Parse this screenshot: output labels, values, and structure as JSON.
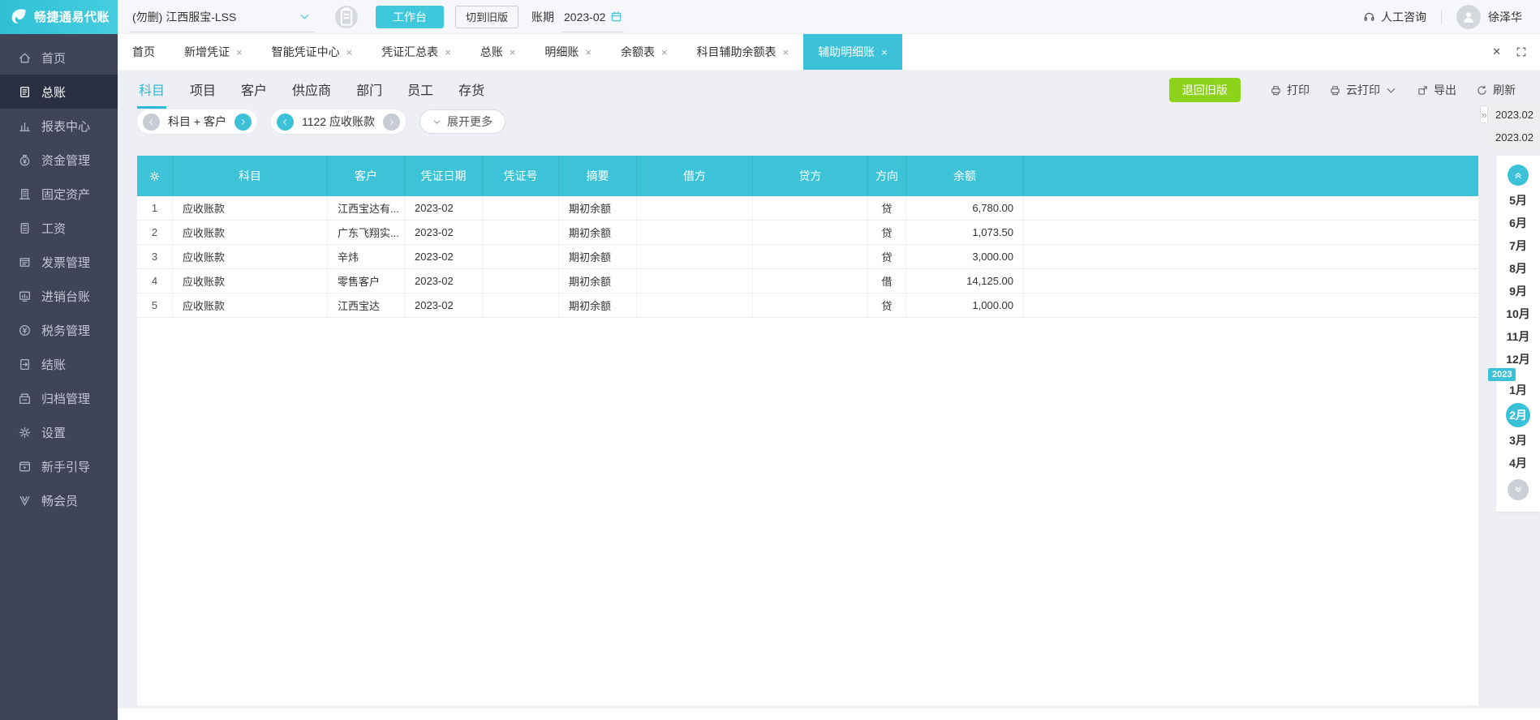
{
  "header": {
    "brand": "畅捷通易代账",
    "company": "(勿删) 江西服宝-LSS",
    "workbench": "工作台",
    "switch_old": "切到旧版",
    "period_label": "账期",
    "period_value": "2023-02",
    "consult": "人工咨询",
    "username": "徐泽华"
  },
  "sidebar": {
    "items": [
      {
        "key": "home",
        "icon": "home-icon",
        "label": "首页",
        "active": false
      },
      {
        "key": "general-ledger",
        "icon": "ledger-icon",
        "label": "总账",
        "active": true
      },
      {
        "key": "report-center",
        "icon": "report-center-icon",
        "label": "报表中心",
        "active": false
      },
      {
        "key": "funds",
        "icon": "funds-icon",
        "label": "资金管理",
        "active": false
      },
      {
        "key": "fixed-assets",
        "icon": "fixed-assets-icon",
        "label": "固定资产",
        "active": false
      },
      {
        "key": "payroll",
        "icon": "payroll-icon",
        "label": "工资",
        "active": false
      },
      {
        "key": "invoice",
        "icon": "invoice-icon",
        "label": "发票管理",
        "active": false
      },
      {
        "key": "purchase-sales-ledger",
        "icon": "purchase-sales-icon",
        "label": "进销台账",
        "active": false
      },
      {
        "key": "tax",
        "icon": "tax-icon",
        "label": "税务管理",
        "active": false
      },
      {
        "key": "closing",
        "icon": "closing-icon",
        "label": "结账",
        "active": false
      },
      {
        "key": "archive",
        "icon": "archive-icon",
        "label": "归档管理",
        "active": false
      },
      {
        "key": "settings",
        "icon": "settings-icon",
        "label": "设置",
        "active": false
      },
      {
        "key": "beginner-guide",
        "icon": "guide-icon",
        "label": "新手引导",
        "active": false
      },
      {
        "key": "member",
        "icon": "member-icon",
        "label": "畅会员",
        "active": false
      }
    ]
  },
  "tabs": [
    {
      "key": "home",
      "label": "首页",
      "closable": false,
      "active": false
    },
    {
      "key": "new-voucher",
      "label": "新增凭证",
      "closable": true,
      "active": false
    },
    {
      "key": "smart-voucher-center",
      "label": "智能凭证中心",
      "closable": true,
      "active": false
    },
    {
      "key": "voucher-summary",
      "label": "凭证汇总表",
      "closable": true,
      "active": false
    },
    {
      "key": "general-ledger",
      "label": "总账",
      "closable": true,
      "active": false
    },
    {
      "key": "detail-ledger",
      "label": "明细账",
      "closable": true,
      "active": false
    },
    {
      "key": "balance-table",
      "label": "余额表",
      "closable": true,
      "active": false
    },
    {
      "key": "subject-aux-balance",
      "label": "科目辅助余额表",
      "closable": true,
      "active": false
    },
    {
      "key": "aux-detail-ledger",
      "label": "辅助明细账",
      "closable": true,
      "active": true
    }
  ],
  "subtabs": [
    {
      "key": "subject",
      "label": "科目",
      "active": true
    },
    {
      "key": "project",
      "label": "项目",
      "active": false
    },
    {
      "key": "customer",
      "label": "客户",
      "active": false
    },
    {
      "key": "supplier",
      "label": "供应商",
      "active": false
    },
    {
      "key": "department",
      "label": "部门",
      "active": false
    },
    {
      "key": "employee",
      "label": "员工",
      "active": false
    },
    {
      "key": "inventory",
      "label": "存货",
      "active": false
    }
  ],
  "toolbar": {
    "back_old": "退回旧版",
    "print": "打印",
    "cloud_print": "云打印",
    "export": "导出",
    "refresh": "刷新"
  },
  "filters": {
    "dimension": "科目 + 客户",
    "account": "1122 应收账款",
    "expand_more": "展开更多"
  },
  "table": {
    "columns": [
      "科目",
      "客户",
      "凭证日期",
      "凭证号",
      "摘要",
      "借方",
      "贷方",
      "方向",
      "余额"
    ],
    "rows": [
      {
        "no": "1",
        "subject": "应收账款",
        "customer": "江西宝达有...",
        "date": "2023-02",
        "voucher_no": "",
        "summary": "期初余额",
        "debit": "",
        "credit": "",
        "direction": "贷",
        "balance": "6,780.00"
      },
      {
        "no": "2",
        "subject": "应收账款",
        "customer": "广东飞翔实...",
        "date": "2023-02",
        "voucher_no": "",
        "summary": "期初余额",
        "debit": "",
        "credit": "",
        "direction": "贷",
        "balance": "1,073.50"
      },
      {
        "no": "3",
        "subject": "应收账款",
        "customer": "辛炜",
        "date": "2023-02",
        "voucher_no": "",
        "summary": "期初余额",
        "debit": "",
        "credit": "",
        "direction": "贷",
        "balance": "3,000.00"
      },
      {
        "no": "4",
        "subject": "应收账款",
        "customer": "零售客户",
        "date": "2023-02",
        "voucher_no": "",
        "summary": "期初余额",
        "debit": "",
        "credit": "",
        "direction": "借",
        "balance": "14,125.00"
      },
      {
        "no": "5",
        "subject": "应收账款",
        "customer": "江西宝达",
        "date": "2023-02",
        "voucher_no": "",
        "summary": "期初余额",
        "debit": "",
        "credit": "",
        "direction": "贷",
        "balance": "1,000.00"
      }
    ]
  },
  "right_panel": {
    "collapse": "»",
    "period_chips": [
      "2023.02",
      "2023.02"
    ],
    "year_badge": {
      "label": "2023",
      "before": "1月"
    },
    "months": [
      "5月",
      "6月",
      "7月",
      "8月",
      "9月",
      "10月",
      "11月",
      "12月",
      "1月",
      "2月",
      "3月",
      "4月"
    ],
    "active_month": "2月"
  },
  "colors": {
    "brand_teal": "#3bc2d9",
    "table_header_teal": "#3cc3d8",
    "green_button": "#8ed31b",
    "sidebar_bg": "#3f4459",
    "sidebar_active_bg": "#2b2f42",
    "content_bg": "#edeff4"
  }
}
